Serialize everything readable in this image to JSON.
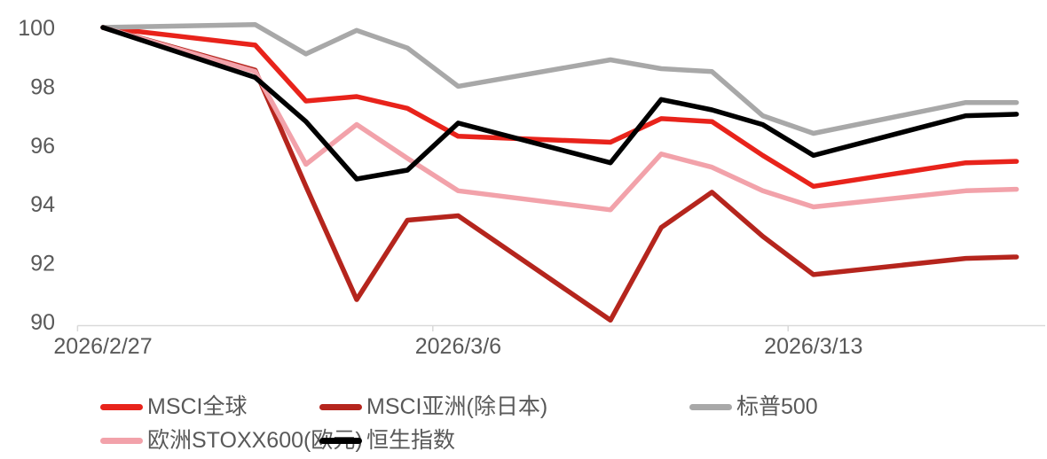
{
  "chart_data": {
    "type": "line",
    "title": "",
    "xlabel": "",
    "ylabel": "",
    "grid": false,
    "background": "#FFFFFF",
    "axis_color": "#D9D9D9",
    "tick_label_color": "#595959",
    "legend_position": "bottom",
    "ylim": [
      90,
      100
    ],
    "y_ticks": [
      100,
      98,
      96,
      94,
      92,
      90
    ],
    "x_dates": [
      "2026/2/27",
      "2026/3/2",
      "2026/3/3",
      "2026/3/4",
      "2026/3/5",
      "2026/3/6",
      "2026/3/9",
      "2026/3/10",
      "2026/3/11",
      "2026/3/12",
      "2026/3/13",
      "2026/3/16",
      "2026/3/17"
    ],
    "x_day_offsets": [
      0,
      3,
      4,
      5,
      6,
      7,
      10,
      11,
      12,
      13,
      14,
      17,
      18
    ],
    "x_axis_tick_labels": [
      "2026/2/27",
      "2026/3/6",
      "2026/3/13"
    ],
    "x_axis_tick_label_offsets": [
      0,
      7,
      14
    ],
    "series": [
      {
        "name": "MSCI全球",
        "color": "#E8231B",
        "values": [
          100,
          99.4,
          97.5,
          97.65,
          97.25,
          96.3,
          96.1,
          96.9,
          96.8,
          95.65,
          94.6,
          95.4,
          95.45
        ]
      },
      {
        "name": "MSCI亚洲(除日本)",
        "color": "#B5251D",
        "values": [
          100,
          98.55,
          94.6,
          90.75,
          93.45,
          93.6,
          90.05,
          93.2,
          94.4,
          92.9,
          91.6,
          92.15,
          92.2
        ]
      },
      {
        "name": "标普500",
        "color": "#A8A8A8",
        "values": [
          100,
          100.1,
          99.1,
          99.9,
          99.3,
          98.0,
          98.9,
          98.6,
          98.5,
          97.0,
          96.4,
          97.45,
          97.45
        ]
      },
      {
        "name": "欧洲STOXX600(欧元)",
        "color": "#F2A2AA",
        "values": [
          100,
          98.5,
          95.35,
          96.7,
          95.55,
          94.45,
          93.8,
          95.7,
          95.25,
          94.45,
          93.9,
          94.45,
          94.5
        ]
      },
      {
        "name": "恒生指数",
        "color": "#000000",
        "values": [
          100,
          98.3,
          96.8,
          94.85,
          95.15,
          96.75,
          95.4,
          97.55,
          97.2,
          96.7,
          95.65,
          97.0,
          97.05
        ]
      }
    ]
  }
}
